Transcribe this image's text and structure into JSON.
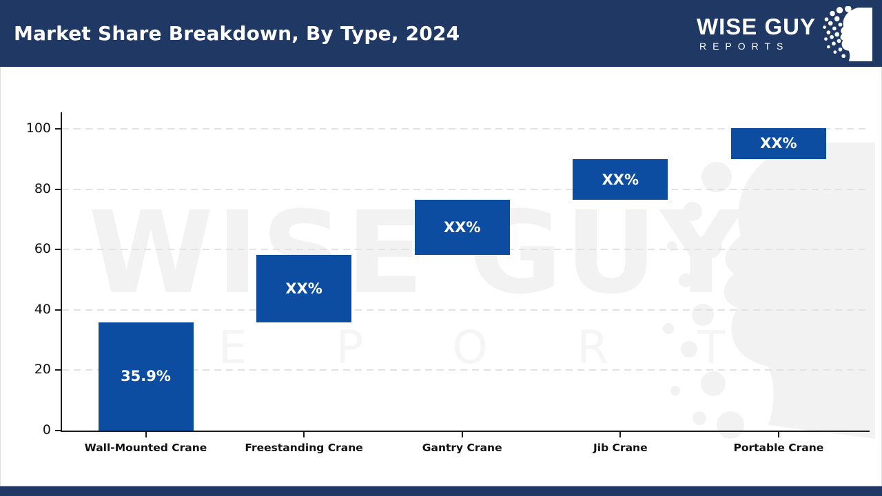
{
  "header": {
    "title": "Market Share Breakdown, By Type, 2024",
    "logo": {
      "primary": "WISE GUY",
      "secondary": "REPORTS"
    }
  },
  "watermark": {
    "primary": "WISE GUY",
    "secondary": "R E P O R T S"
  },
  "chart_data": {
    "type": "bar",
    "subtype": "waterfall",
    "title": "Market Share Breakdown, By Type, 2024",
    "categories": [
      "Wall-Mounted Crane",
      "Freestanding Crane",
      "Gantry Crane",
      "Jib Crane",
      "Portable Crane"
    ],
    "series": [
      {
        "name": "Market Share",
        "segments": [
          {
            "category": "Wall-Mounted Crane",
            "start": 0,
            "end": 35.9,
            "label": "35.9%"
          },
          {
            "category": "Freestanding Crane",
            "start": 35.9,
            "end": 58.3,
            "label": "XX%"
          },
          {
            "category": "Gantry Crane",
            "start": 58.3,
            "end": 76.4,
            "label": "XX%"
          },
          {
            "category": "Jib Crane",
            "start": 76.4,
            "end": 90.0,
            "label": "XX%"
          },
          {
            "category": "Portable Crane",
            "start": 90.0,
            "end": 100.2,
            "label": "XX%"
          }
        ]
      }
    ],
    "xlabel": "",
    "ylabel": "",
    "ylim": [
      0,
      105
    ],
    "yticks": [
      0,
      20,
      40,
      60,
      80,
      100
    ],
    "grid": true,
    "legend": false,
    "bar_color": "#0c4da2",
    "bar_label_color": "#ffffff"
  },
  "colors": {
    "header_bg": "#1f3864",
    "footer_bg": "#1f3864",
    "title_text": "#ffffff",
    "axis": "#1a1a1a",
    "gridline": "#e2e2e2",
    "watermark": "#f2f2f2"
  }
}
